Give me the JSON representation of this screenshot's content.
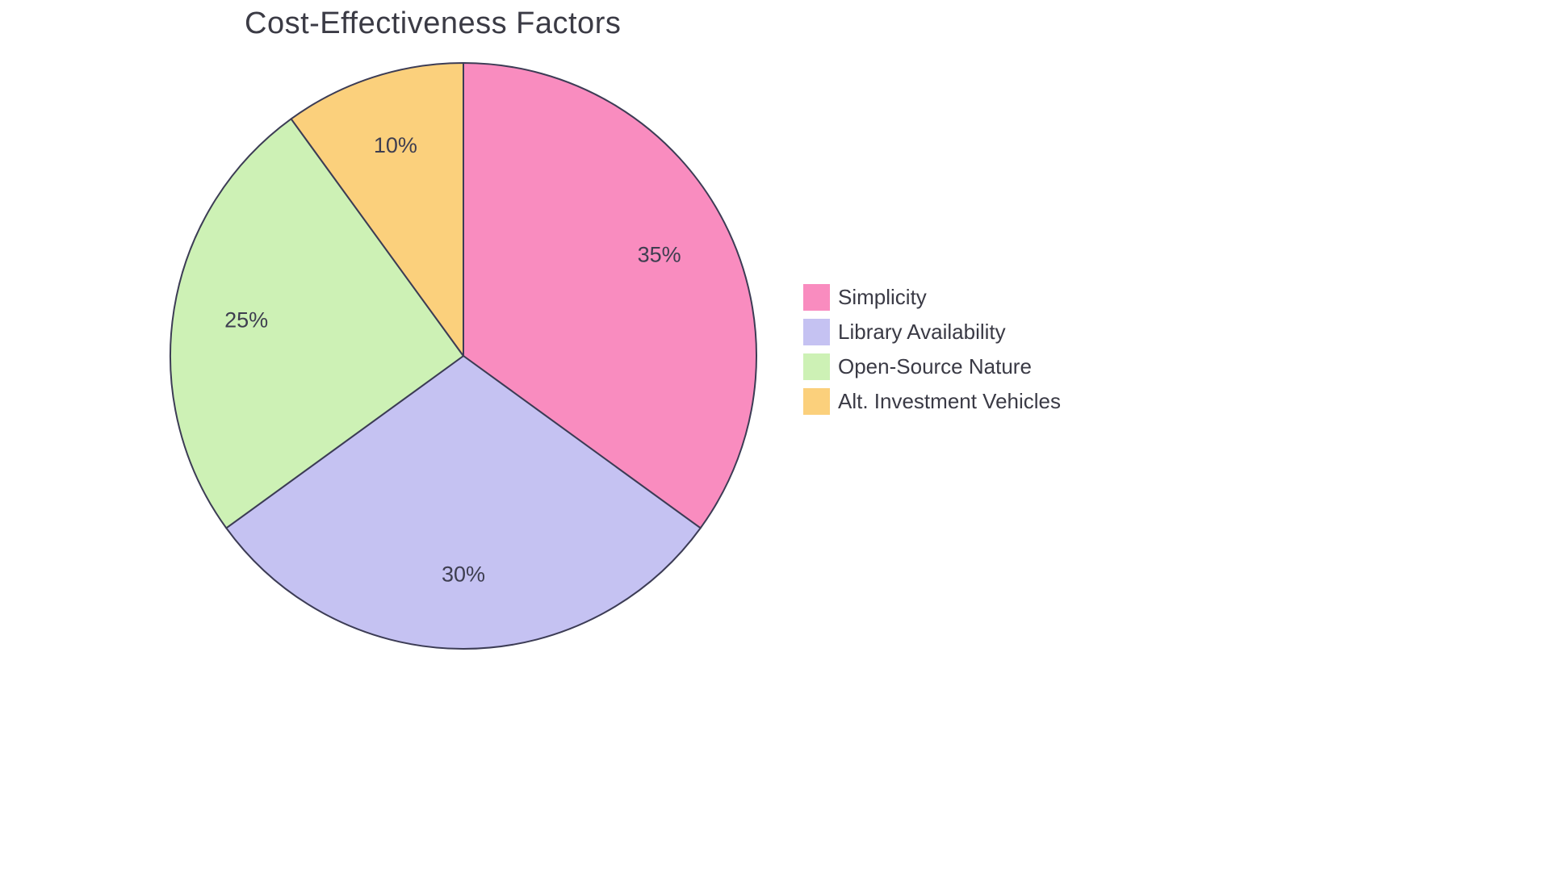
{
  "chart_data": {
    "type": "pie",
    "title": "Cost-Effectiveness Factors",
    "labels": [
      "Simplicity",
      "Library Availability",
      "Open-Source Nature",
      "Alt. Investment Vehicles"
    ],
    "values": [
      35,
      30,
      25,
      10
    ],
    "percent_labels": [
      "35%",
      "30%",
      "25%",
      "10%"
    ],
    "colors": [
      "#F98CBF",
      "#C5C2F2",
      "#CDF1B5",
      "#FBD07C"
    ],
    "stroke_color": "#3C3C55",
    "label_color": "#3E3E50",
    "start_angle_deg": 0,
    "direction": "clockwise",
    "legend_position": "right",
    "grid": false
  }
}
